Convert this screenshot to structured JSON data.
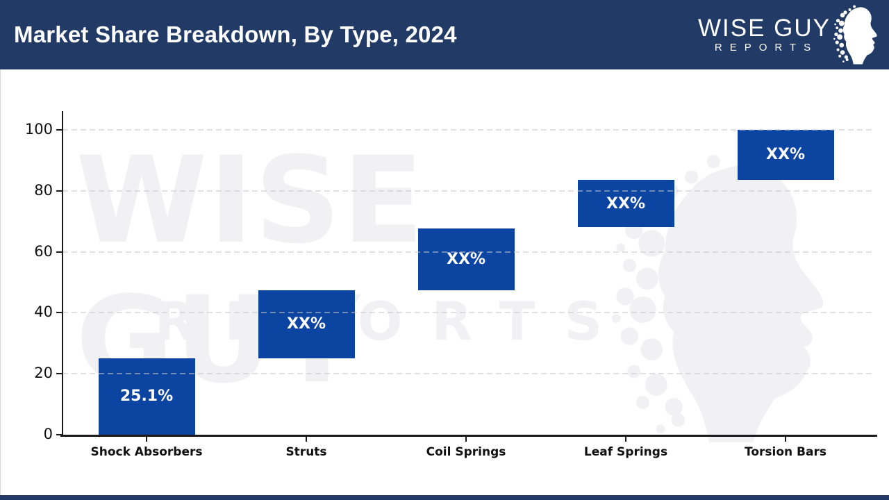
{
  "header": {
    "title": "Market Share Breakdown, By Type, 2024",
    "logo": {
      "line1": "WISE GUY",
      "line2": "REPORTS"
    }
  },
  "watermark": {
    "line1": "WISE GUY",
    "line2": "REPORTS"
  },
  "colors": {
    "header_bg": "#213A66",
    "bar_blue": "#0C44A1",
    "axis": "#1A1A1A",
    "watermark_gray": "#F1F1F4",
    "label_white": "#FFFFFF",
    "text": "#111111"
  },
  "chart_data": {
    "type": "bar",
    "subtype": "waterfall",
    "title": "Market Share Breakdown, By Type, 2024",
    "categories": [
      "Shock Absorbers",
      "Struts",
      "Coil Springs",
      "Leaf Springs",
      "Torsion Bars"
    ],
    "segments": [
      {
        "category": "Shock Absorbers",
        "start": 0,
        "end": 25.1,
        "label": "25.1%"
      },
      {
        "category": "Struts",
        "start": 25.1,
        "end": 47.4,
        "label": "XX%"
      },
      {
        "category": "Coil Springs",
        "start": 47.4,
        "end": 67.7,
        "label": "XX%"
      },
      {
        "category": "Leaf Springs",
        "start": 68.0,
        "end": 83.6,
        "label": "XX%"
      },
      {
        "category": "Torsion Bars",
        "start": 83.6,
        "end": 100,
        "label": "XX%"
      }
    ],
    "xlabel": "",
    "ylabel": "",
    "yticks": [
      0,
      20,
      40,
      60,
      80,
      100
    ],
    "ylim": [
      0,
      106
    ],
    "grid": "horizontal-dashed",
    "legend": "none"
  }
}
